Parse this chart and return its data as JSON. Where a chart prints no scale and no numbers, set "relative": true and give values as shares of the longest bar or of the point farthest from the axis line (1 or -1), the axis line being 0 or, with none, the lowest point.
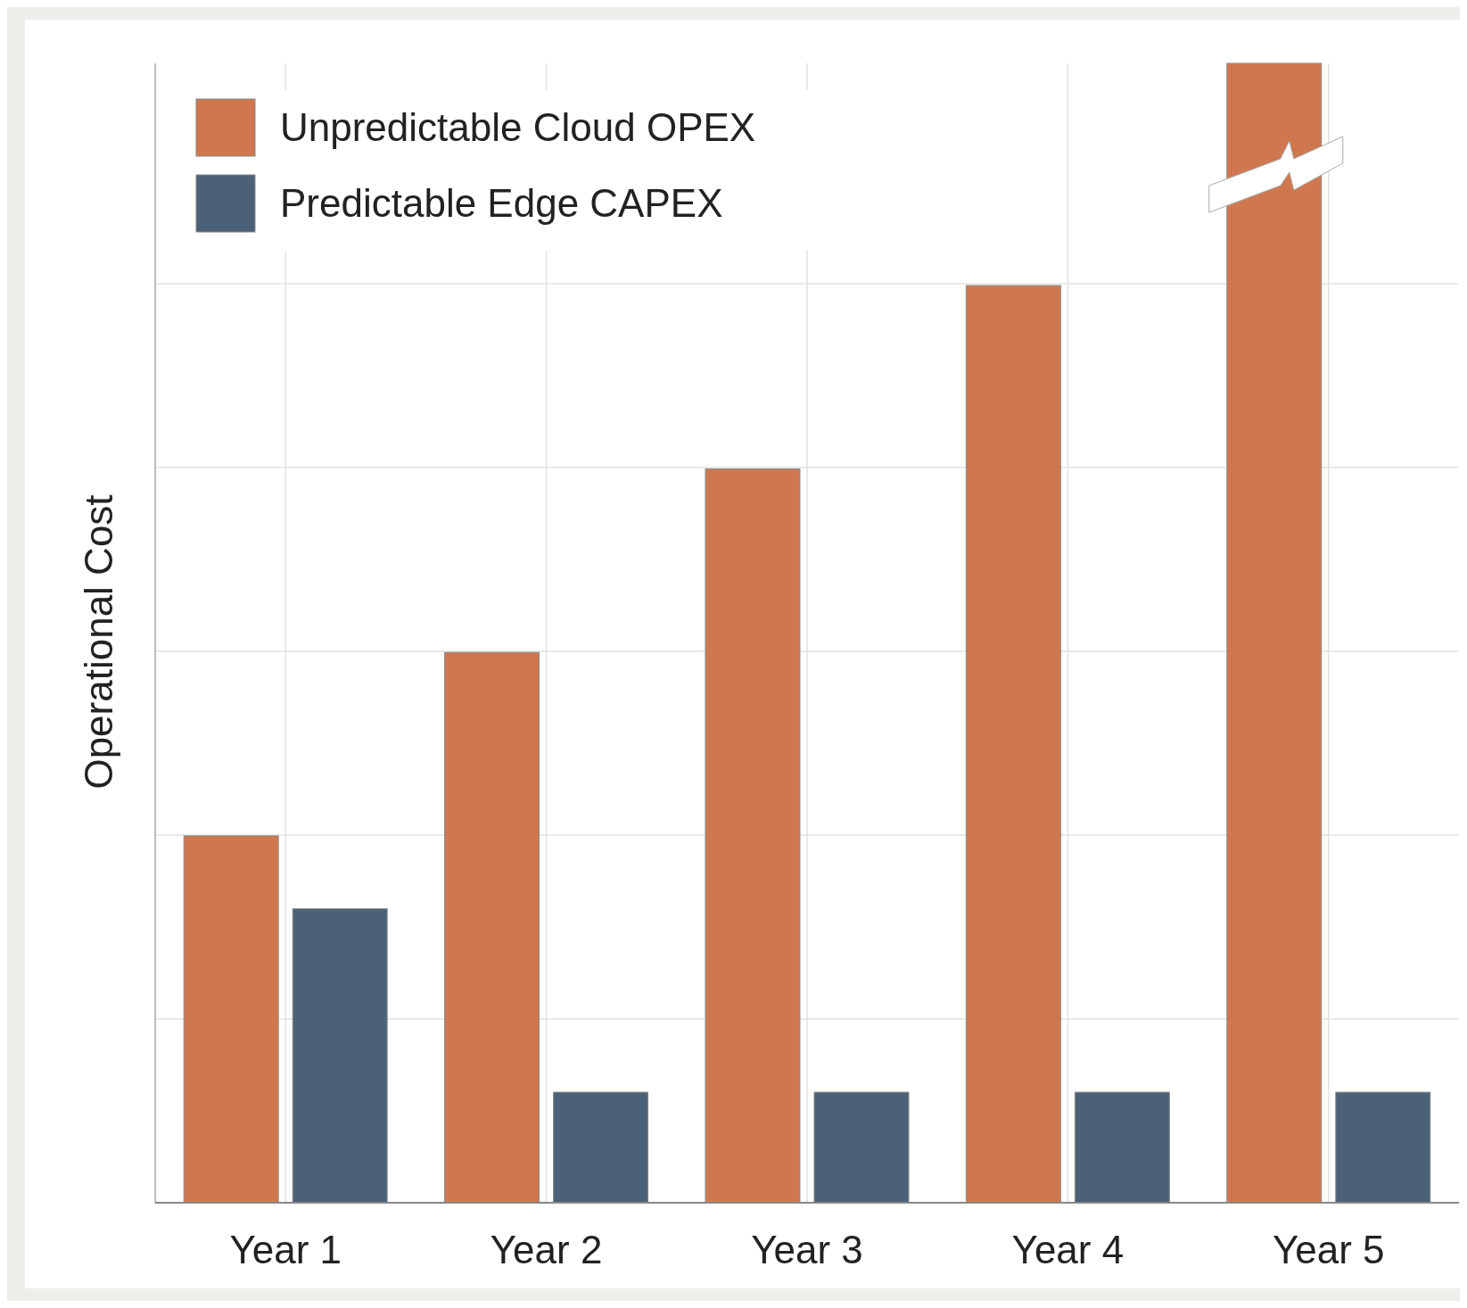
{
  "chart_data": {
    "type": "bar",
    "ylabel": "Operational Cost",
    "relative": true,
    "categories": [
      "Year 1",
      "Year 2",
      "Year 3",
      "Year 4",
      "Year 5"
    ],
    "series": [
      {
        "name": "Unpredictable Cloud OPEX",
        "color": "#cf7850",
        "values": [
          0.322,
          0.483,
          0.644,
          0.805,
          1
        ]
      },
      {
        "name": "Predictable Edge CAPEX",
        "color": "#4b6177",
        "values": [
          0.258,
          0.097,
          0.097,
          0.097,
          0.097
        ]
      }
    ],
    "grid": true,
    "legend": "top left"
  }
}
